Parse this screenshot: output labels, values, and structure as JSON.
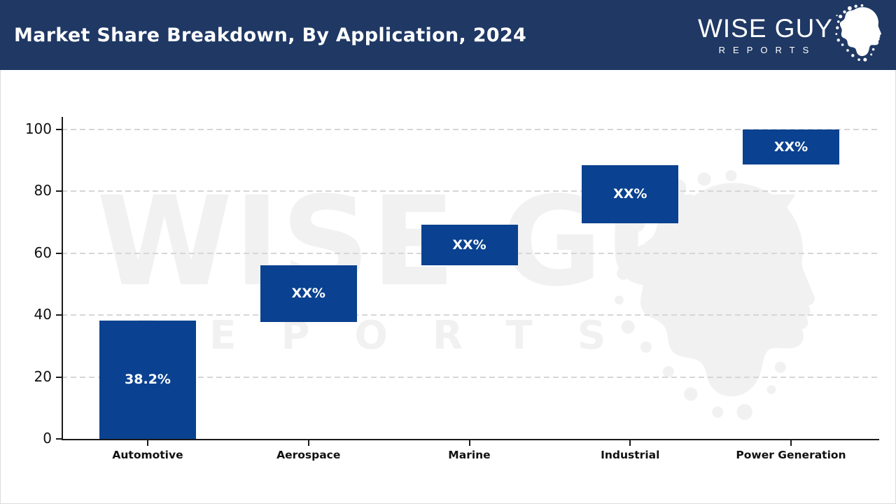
{
  "header": {
    "title": "Market Share Breakdown, By Application, 2024",
    "logo": {
      "line1": "WISE GUY",
      "line2": "REPORTS"
    }
  },
  "watermark": {
    "line1": "WISE GUY",
    "line2": "REPORTS"
  },
  "colors": {
    "header_bg": "#1f3864",
    "bar": "#0a4190",
    "bar_label": "#ffffff",
    "grid": "#d6d6d6",
    "axis": "#1a1a1a",
    "tick_text": "#111111",
    "watermark": "#f1f1f1"
  },
  "chart_data": {
    "type": "bar",
    "subtype": "waterfall",
    "title": "Market Share Breakdown, By Application, 2024",
    "categories": [
      "Automotive",
      "Aerospace",
      "Marine",
      "Industrial",
      "Power Generation"
    ],
    "segments": [
      {
        "category": "Automotive",
        "start": 0,
        "end": 38.2,
        "label": "38.2%"
      },
      {
        "category": "Aerospace",
        "start": 37.8,
        "end": 56,
        "label": "XX%"
      },
      {
        "category": "Marine",
        "start": 56,
        "end": 69.2,
        "label": "XX%"
      },
      {
        "category": "Industrial",
        "start": 69.6,
        "end": 88.4,
        "label": "XX%"
      },
      {
        "category": "Power Generation",
        "start": 88.6,
        "end": 100,
        "label": "XX%"
      }
    ],
    "yticks": [
      0,
      20,
      40,
      60,
      80,
      100
    ],
    "ylim": [
      0,
      104
    ],
    "xlabel": "",
    "ylabel": "",
    "grid": "dashed-horizontal",
    "legend": "none"
  }
}
